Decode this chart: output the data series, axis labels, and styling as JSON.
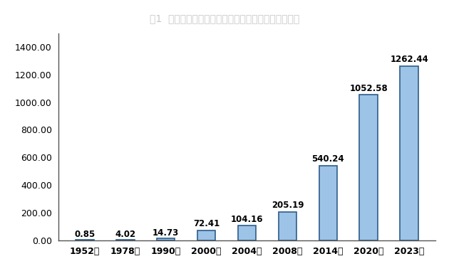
{
  "categories": [
    "1952年",
    "1978年",
    "1990年",
    "2000年",
    "2004年",
    "2008年",
    "2014年",
    "2020年",
    "2023年"
  ],
  "values": [
    0.85,
    4.02,
    14.73,
    72.41,
    104.16,
    205.19,
    540.24,
    1052.58,
    1262.44
  ],
  "bar_color": "#9dc3e6",
  "bar_edge_color": "#2e5c8a",
  "title": "图1  新中国成立以来主要年份的国内生产总值（亿元）",
  "title_color": "#c8c8c8",
  "ylabel_ticks": [
    0.0,
    200.0,
    400.0,
    600.0,
    800.0,
    1000.0,
    1200.0,
    1400.0
  ],
  "ylim": [
    0,
    1500
  ],
  "background_color": "#ffffff",
  "label_fontsize": 8.5,
  "tick_fontsize": 9,
  "title_fontsize": 10,
  "bar_width": 0.45,
  "spine_color": "#555555",
  "label_color": "#000000"
}
